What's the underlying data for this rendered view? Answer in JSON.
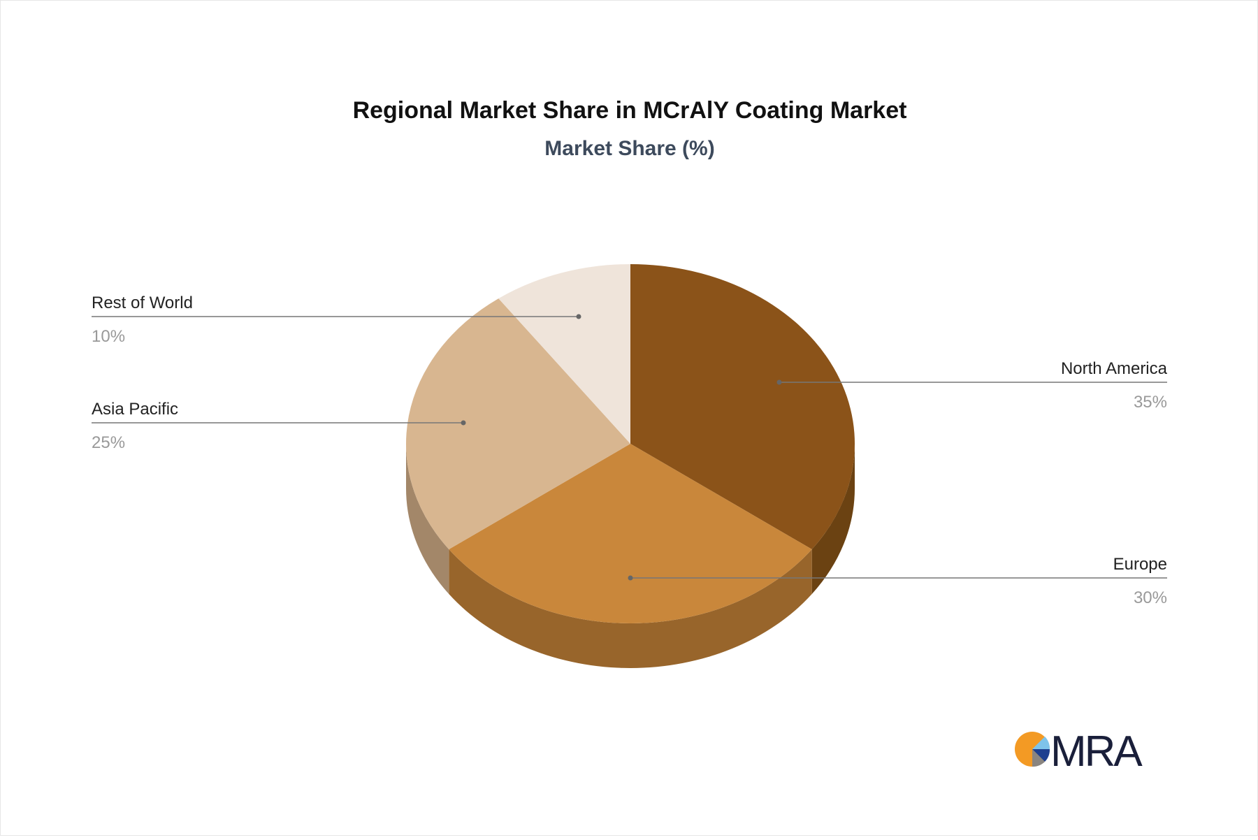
{
  "chart_data": {
    "type": "pie",
    "style": "3d",
    "title": "Regional Market Share in MCrAlY Coating Market",
    "subtitle": "Market Share (%)",
    "unit": "%",
    "slices": [
      {
        "label": "North America",
        "value": 35,
        "display": "35%",
        "color": "#8b5319",
        "side_color": "#6b4212"
      },
      {
        "label": "Europe",
        "value": 30,
        "display": "30%",
        "color": "#c9873b",
        "side_color": "#98652b"
      },
      {
        "label": "Asia Pacific",
        "value": 25,
        "display": "25%",
        "color": "#d8b690",
        "side_color": "#a38769"
      },
      {
        "label": "Rest of World",
        "value": 10,
        "display": "10%",
        "color": "#efe4da",
        "side_color": "#c4b8ac"
      }
    ]
  },
  "logo": {
    "text": "MRA",
    "colors": [
      "#f39a24",
      "#7ec3ea",
      "#1d3f8f",
      "#8a8580",
      "#1a1f3a"
    ]
  }
}
